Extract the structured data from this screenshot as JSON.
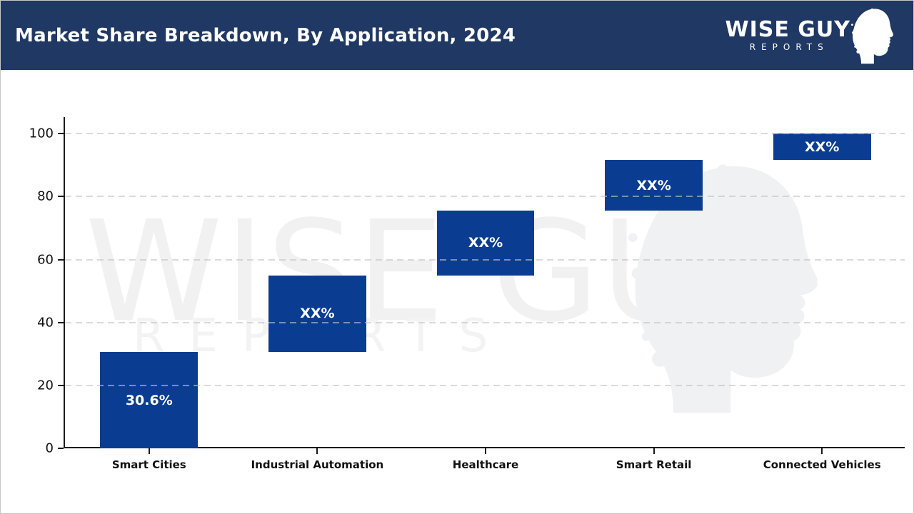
{
  "header": {
    "title": "Market Share Breakdown, By Application, 2024",
    "logo": {
      "line1": "WISE GUY",
      "line2": "REPORTS"
    }
  },
  "watermark": {
    "line1": "WISE GUY",
    "line2": "REPORTS"
  },
  "colors": {
    "header_bg": "#1f3864",
    "bar": "#0a3d91",
    "axis": "#1a1a1a",
    "grid": "#c3c3c3",
    "bar_label": "#ffffff",
    "watermark": "#f1f1f2"
  },
  "chart_data": {
    "type": "bar",
    "subtype": "waterfall-floating-bars",
    "title": "Market Share Breakdown, By Application, 2024",
    "categories": [
      "Smart Cities",
      "Industrial Automation",
      "Healthcare",
      "Smart Retail",
      "Connected Vehicles"
    ],
    "segments": [
      {
        "category": "Smart Cities",
        "from": 0,
        "to": 30.6,
        "label": "30.6%"
      },
      {
        "category": "Industrial Automation",
        "from": 30.6,
        "to": 55.0,
        "label": "XX%"
      },
      {
        "category": "Healthcare",
        "from": 55.0,
        "to": 75.5,
        "label": "XX%"
      },
      {
        "category": "Smart Retail",
        "from": 75.5,
        "to": 91.7,
        "label": "XX%"
      },
      {
        "category": "Connected Vehicles",
        "from": 91.7,
        "to": 100.0,
        "label": "XX%"
      }
    ],
    "xlabel": "",
    "ylabel": "",
    "yticks": [
      0,
      20,
      40,
      60,
      80,
      100
    ],
    "ylim": [
      0,
      105.3
    ],
    "grid": "horizontal-dashed",
    "legend": "none",
    "bar_width_fraction": 0.58
  }
}
